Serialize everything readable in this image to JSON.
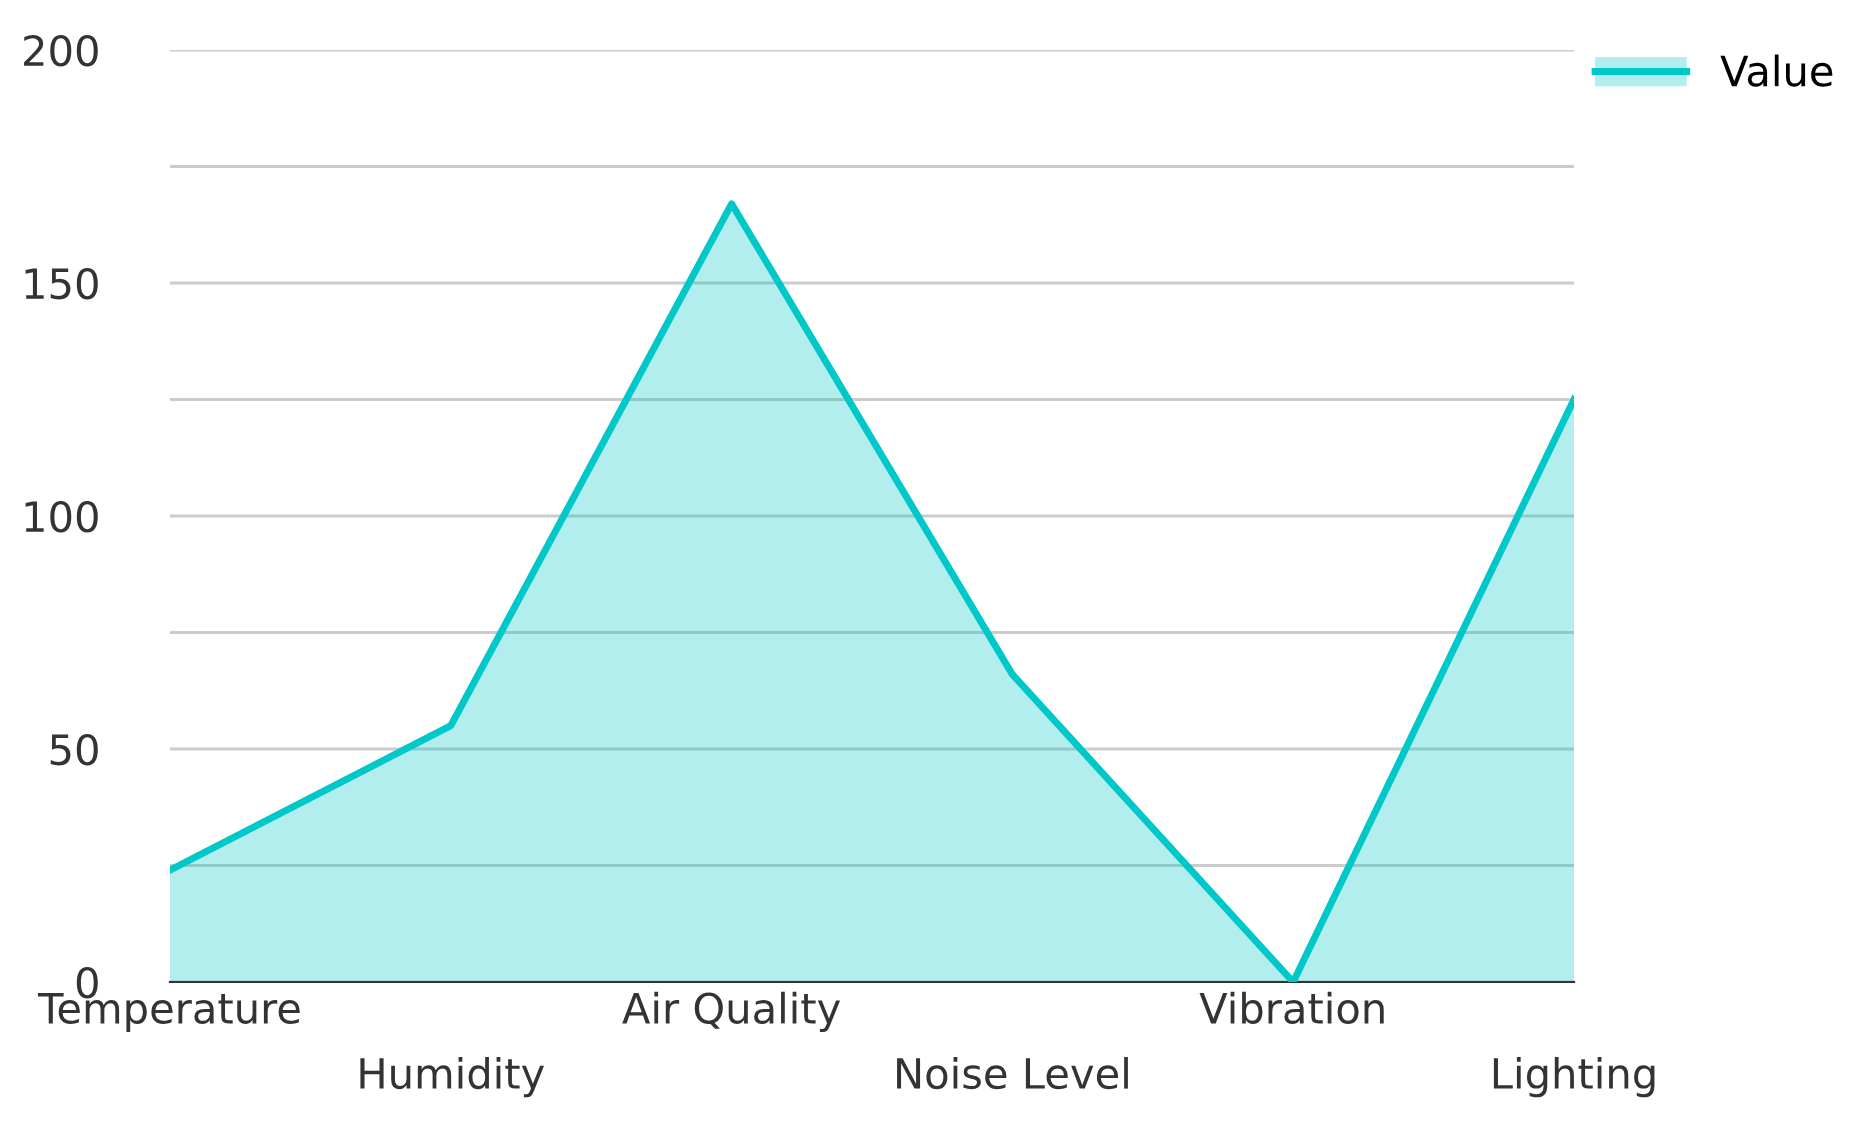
{
  "chart_data": {
    "type": "area",
    "categories": [
      "Temperature",
      "Humidity",
      "Air Quality",
      "Noise Level",
      "Vibration",
      "Lighting"
    ],
    "series": [
      {
        "name": "Value",
        "color": "#00c8c8",
        "values": [
          24,
          55,
          167,
          66,
          0,
          125
        ]
      }
    ],
    "ylim": [
      0,
      200
    ],
    "yticks": [
      0,
      {
        "value": 25,
        "label": null
      },
      50,
      {
        "value": 75,
        "label": null
      },
      100,
      {
        "value": 125,
        "label": null
      },
      150,
      {
        "value": 175,
        "label": null
      },
      200
    ],
    "grid": "y",
    "legend": "top right",
    "marker": "none",
    "line_style": "solid"
  }
}
